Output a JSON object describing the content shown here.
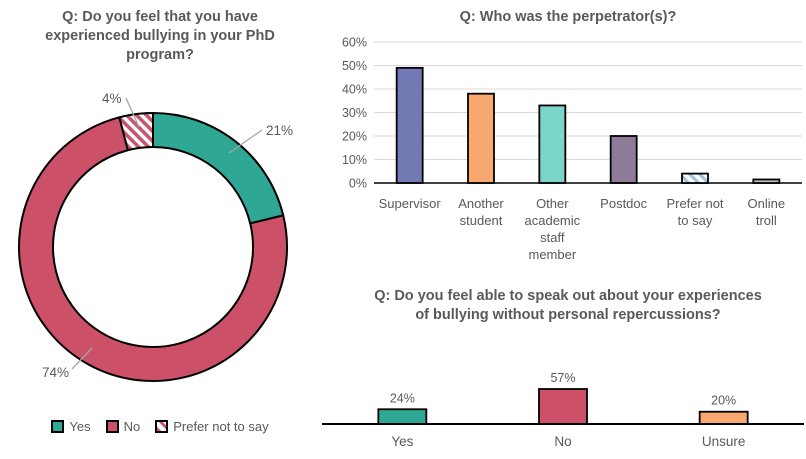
{
  "colors": {
    "text": "#595959",
    "grid": "#D9D9D9",
    "axis": "#000000",
    "outline": "#000000",
    "leader": "#A6A6A6",
    "teal": "#2EA794",
    "red": "#CC5168",
    "hatch_red_stripe": "#C9566E",
    "slate_blue": "#7379B2",
    "orange": "#F9A870",
    "light_teal": "#7BD5C8",
    "mauve": "#8C7B99",
    "hatch_blue_stripe": "#9DC3E6",
    "gray": "#BFBFBF"
  },
  "chart_data": [
    {
      "type": "pie",
      "subtype": "donut",
      "title": "Q: Do you feel that you have experienced bullying in your PhD program?",
      "labels": [
        "Yes",
        "No",
        "Prefer not to say"
      ],
      "values": [
        21,
        74,
        4
      ],
      "value_labels": [
        "21%",
        "74%",
        "4%"
      ],
      "slice_styles": [
        "teal",
        "red",
        "hatch_red"
      ],
      "legend_position": "bottom",
      "unit": "%"
    },
    {
      "type": "bar",
      "title": "Q: Who was the perpetrator(s)?",
      "categories": [
        "Supervisor",
        "Another student",
        "Other academic staff member",
        "Postdoc",
        "Prefer not to say",
        "Online troll"
      ],
      "category_lines": [
        [
          "Supervisor"
        ],
        [
          "Another",
          "student"
        ],
        [
          "Other",
          "academic",
          "staff",
          "member"
        ],
        [
          "Postdoc"
        ],
        [
          "Prefer not",
          "to say"
        ],
        [
          "Online",
          "troll"
        ]
      ],
      "values": [
        49,
        38,
        33,
        20,
        4,
        1.5
      ],
      "bar_styles": [
        "slate_blue",
        "orange",
        "light_teal",
        "mauve",
        "hatch_blue",
        "gray"
      ],
      "y_ticks": [
        "0%",
        "10%",
        "20%",
        "30%",
        "40%",
        "50%",
        "60%"
      ],
      "ylim": [
        0,
        60
      ],
      "ytick_step": 10,
      "grid": true,
      "unit": "%"
    },
    {
      "type": "bar",
      "title": "Q: Do you feel able to speak out about your experiences of bullying without personal repercussions?",
      "categories": [
        "Yes",
        "No",
        "Unsure"
      ],
      "values": [
        24,
        57,
        20
      ],
      "data_labels": [
        "24%",
        "57%",
        "20%"
      ],
      "bar_styles": [
        "teal",
        "red",
        "orange"
      ],
      "grid": false,
      "unit": "%"
    }
  ]
}
